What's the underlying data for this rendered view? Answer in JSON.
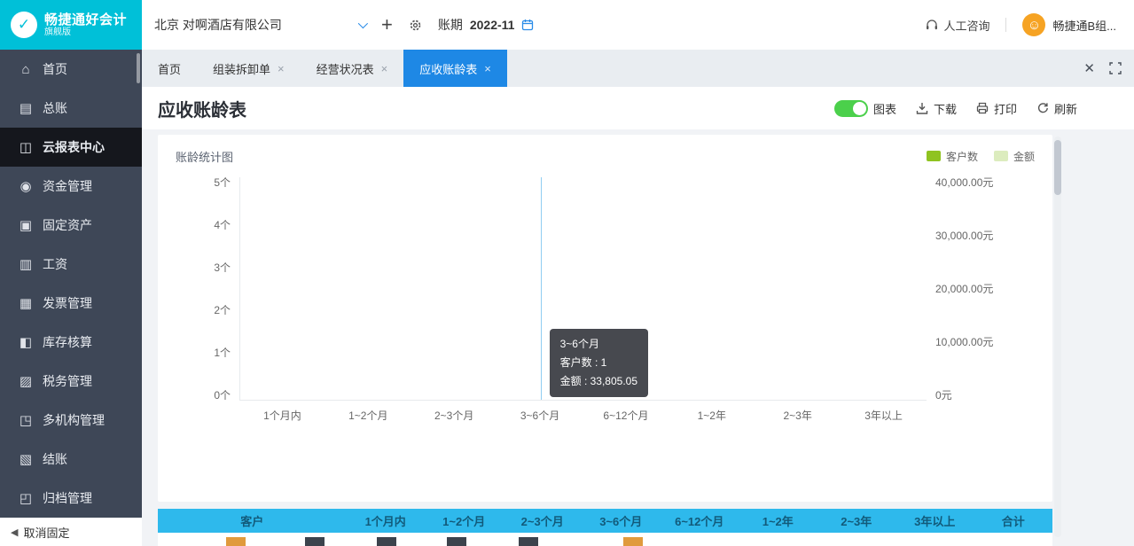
{
  "colors": {
    "teal": "#00c0d8",
    "sidebar": "#3e4757",
    "sidebar_active": "#15171d",
    "tab_active": "#1e88e5",
    "toggle_on": "#4bd04b",
    "table_header": "#2eb9ec"
  },
  "brand": {
    "name": "畅捷通好会计",
    "edition": "旗舰版"
  },
  "topbar": {
    "company": "北京 对啊酒店有限公司",
    "plus": "+",
    "period_label": "账期",
    "period_value": "2022-11",
    "consult_label": "人工咨询",
    "user_label": "畅捷通B组...",
    "avatar_glyph": "☺"
  },
  "sidebar": {
    "items": [
      {
        "name": "home",
        "label": "首页",
        "glyph": "⌂",
        "active": false
      },
      {
        "name": "general-ledger",
        "label": "总账",
        "glyph": "▤",
        "active": false
      },
      {
        "name": "cloud-report-center",
        "label": "云报表中心",
        "glyph": "◫",
        "active": true
      },
      {
        "name": "fund-management",
        "label": "资金管理",
        "glyph": "◉",
        "active": false
      },
      {
        "name": "fixed-assets",
        "label": "固定资产",
        "glyph": "▣",
        "active": false
      },
      {
        "name": "payroll",
        "label": "工资",
        "glyph": "▥",
        "active": false
      },
      {
        "name": "invoice-management",
        "label": "发票管理",
        "glyph": "▦",
        "active": false
      },
      {
        "name": "inventory-accounting",
        "label": "库存核算",
        "glyph": "◧",
        "active": false
      },
      {
        "name": "tax-management",
        "label": "税务管理",
        "glyph": "▨",
        "active": false
      },
      {
        "name": "multi-org-management",
        "label": "多机构管理",
        "glyph": "◳",
        "active": false
      },
      {
        "name": "closing",
        "label": "结账",
        "glyph": "▧",
        "active": false
      },
      {
        "name": "archive-management",
        "label": "归档管理",
        "glyph": "◰",
        "active": false
      }
    ],
    "pin_label": "取消固定",
    "pin_glyph": "◀"
  },
  "tabbar": {
    "close_all_glyph": "✕"
  },
  "tabs": [
    {
      "name": "home",
      "label": "首页",
      "closable": false,
      "active": false
    },
    {
      "name": "assembly-disassembly",
      "label": "组装拆卸单",
      "closable": true,
      "active": false
    },
    {
      "name": "business-status",
      "label": "经营状况表",
      "closable": true,
      "active": false
    },
    {
      "name": "receivable-aging",
      "label": "应收账龄表",
      "closable": true,
      "active": true
    }
  ],
  "page": {
    "title": "应收账龄表",
    "controls": {
      "chart_toggle": "图表",
      "download": "下载",
      "print": "打印",
      "refresh": "刷新"
    }
  },
  "chart_data": {
    "type": "bar",
    "title": "账龄统计图",
    "categories": [
      "1个月内",
      "1~2个月",
      "2~3个月",
      "3~6个月",
      "6~12个月",
      "1~2年",
      "2~3年",
      "3年以上"
    ],
    "series": [
      {
        "key": "customers",
        "name": "客户数",
        "color": "#8fc320",
        "axis": "left",
        "values": [
          0,
          0,
          0,
          1,
          0,
          0,
          0,
          0
        ]
      },
      {
        "key": "amount",
        "name": "金额",
        "color": "#dcecbe",
        "axis": "right",
        "values": [
          0,
          0,
          0,
          33805.05,
          0,
          0,
          0,
          0
        ]
      }
    ],
    "left_axis": {
      "ticks": [
        "5个",
        "4个",
        "3个",
        "2个",
        "1个",
        "0个"
      ],
      "min": 0,
      "max": 5
    },
    "right_axis": {
      "ticks": [
        "40,000.00元",
        "30,000.00元",
        "20,000.00元",
        "10,000.00元",
        "0元"
      ],
      "min": 0,
      "max": 40000
    },
    "legend_position": "top-right",
    "grid": false,
    "tooltip": {
      "category_index": 3,
      "title": "3~6个月",
      "lines": [
        "客户数 : 1",
        "金额 : 33,805.05"
      ]
    }
  },
  "table": {
    "headers": [
      "客户",
      "1个月内",
      "1~2个月",
      "2~3个月",
      "3~6个月",
      "6~12个月",
      "1~2年",
      "2~3年",
      "3年以上",
      "合计"
    ]
  }
}
